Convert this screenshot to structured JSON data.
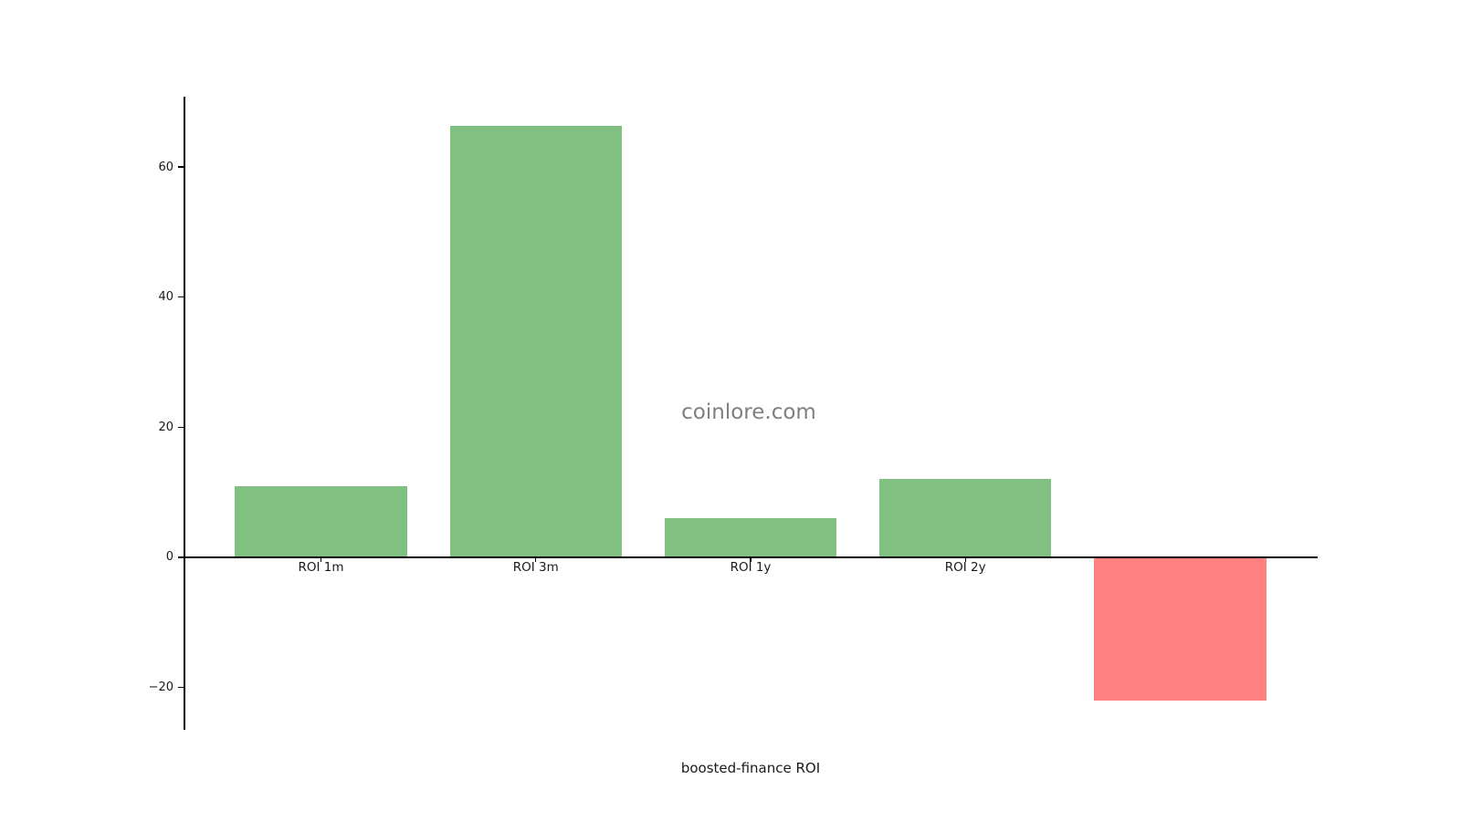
{
  "chart_data": {
    "type": "bar",
    "title": "",
    "xlabel": "boosted-finance ROI",
    "ylabel": "",
    "watermark": "coinlore.com",
    "categories": [
      "ROI 1m",
      "ROI 3m",
      "ROI 1y",
      "ROI 2y",
      ""
    ],
    "values": [
      11,
      66.3,
      6,
      12,
      -22
    ],
    "positive_color": "#80c080",
    "negative_color": "#ff8080",
    "axis_color": "#000000",
    "text_color": "#1a1a1a",
    "watermark_color": "#7f7f7f",
    "yticks": [
      -20,
      0,
      20,
      40,
      60
    ],
    "ylim": [
      -26.5,
      70.8
    ],
    "xlim": [
      -0.64,
      4.64
    ],
    "bar_width": 0.8,
    "grid": false,
    "legend": null
  }
}
